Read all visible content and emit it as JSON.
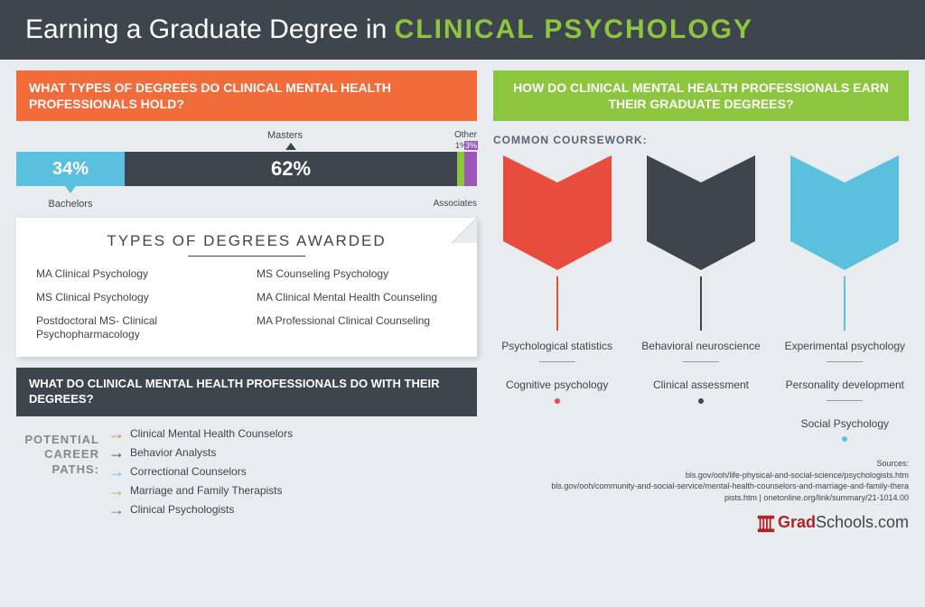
{
  "header": {
    "prefix": "Earning a Graduate Degree in ",
    "accent": "CLINICAL PSYCHOLOGY"
  },
  "colors": {
    "orange": "#f26b3a",
    "green": "#8cc63f",
    "dark": "#3f454c",
    "blue": "#5bc0de",
    "purple": "#9b59b6",
    "red": "#b22222",
    "bg": "#e8ecee"
  },
  "left": {
    "q1": "WHAT TYPES OF DEGREES DO CLINICAL MENTAL HEALTH PROFESSIONALS HOLD?",
    "bars": {
      "bachelors": {
        "label": "Bachelors",
        "pct": "34%",
        "width": 120,
        "color": "#5bc0de"
      },
      "masters": {
        "label": "Masters",
        "pct": "62%",
        "color": "#3f454c"
      },
      "other": {
        "label": "Other",
        "pct": "1%",
        "width": 8,
        "color": "#8cc63f"
      },
      "associates": {
        "label": "Associates",
        "pct": "3%",
        "width": 14,
        "color": "#9b59b6"
      }
    },
    "degrees_title": "TYPES OF DEGREES AWARDED",
    "degrees": [
      "MA Clinical Psychology",
      "MS Counseling Psychology",
      "MS Clinical Psychology",
      "MA Clinical Mental Health Counseling",
      "Postdoctoral MS- Clinical Psychopharmacology",
      "MA Professional Clinical Counseling"
    ],
    "q2": "WHAT DO CLINICAL MENTAL HEALTH PROFESSIONALS DO WITH THEIR DEGREES?",
    "careers_label": "POTENTIAL CAREER PATHS:",
    "careers": [
      {
        "label": "Clinical Mental Health Counselors",
        "color": "#f26b3a"
      },
      {
        "label": "Behavior Analysts",
        "color": "#3f454c"
      },
      {
        "label": "Correctional Counselors",
        "color": "#5bc0de"
      },
      {
        "label": "Marriage and Family Therapists",
        "color": "#8cc63f"
      },
      {
        "label": "Clinical Psychologists",
        "color": "#9b59b6"
      }
    ]
  },
  "right": {
    "q": "HOW DO CLINICAL MENTAL HEALTH PROFESSIONALS EARN THEIR GRADUATE DEGREES?",
    "subhead": "COMMON COURSEWORK:",
    "cols": [
      {
        "color": "#e74c3c",
        "stem": "#e74c3c",
        "courses": [
          "Psychological statistics",
          "Cognitive psychology"
        ]
      },
      {
        "color": "#3f454c",
        "stem": "#3f454c",
        "courses": [
          "Behavioral neuroscience",
          "Clinical assessment"
        ]
      },
      {
        "color": "#5bc0de",
        "stem": "#5bc0de",
        "courses": [
          "Experimental psychology",
          "Personality development",
          "Social Psychology"
        ]
      }
    ],
    "sources_label": "Sources:",
    "sources": [
      "bls.gov/ooh/life-physical-and-social-science/psychologists.htm",
      "bls.gov/ooh/community-and-social-service/mental-health-counselors-and-marriage-and-family-thera",
      "pists.htm |   onetonline.org/link/summary/21-1014.00"
    ],
    "logo": {
      "brand": "Grad",
      "rest": "Schools.com"
    }
  }
}
